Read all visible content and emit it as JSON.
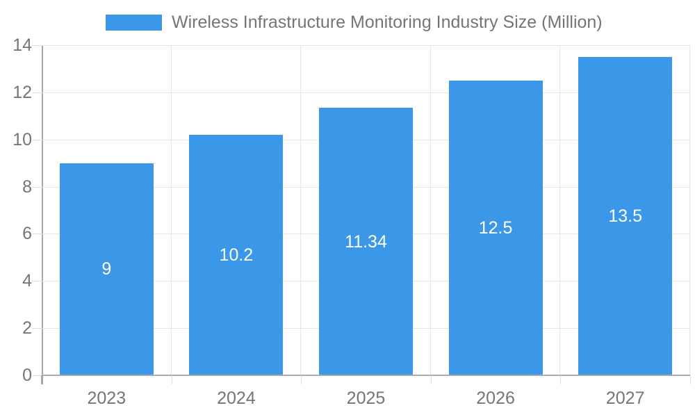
{
  "legend": {
    "label": "Wireless Infrastructure Monitoring Industry Size (Million)"
  },
  "chart_data": {
    "type": "bar",
    "title": "Wireless Infrastructure Monitoring Industry Size (Million)",
    "categories": [
      "2023",
      "2024",
      "2025",
      "2026",
      "2027"
    ],
    "values": [
      9,
      10.2,
      11.34,
      12.5,
      13.5
    ],
    "bar_labels": [
      "9",
      "10.2",
      "11.34",
      "12.5",
      "13.5"
    ],
    "xlabel": "",
    "ylabel": "",
    "ylim": [
      0,
      14
    ],
    "yticks": [
      0,
      2,
      4,
      6,
      8,
      10,
      12,
      14
    ],
    "grid": true,
    "legend_position": "top",
    "bar_label_position": "center-inside"
  },
  "colors": {
    "bar": "#3B98E8",
    "text": "#757575",
    "grid": "#E6E6E6",
    "axis": "#ABABAB",
    "bar_label": "#FFFFFF",
    "background": "#FFFFFF"
  }
}
